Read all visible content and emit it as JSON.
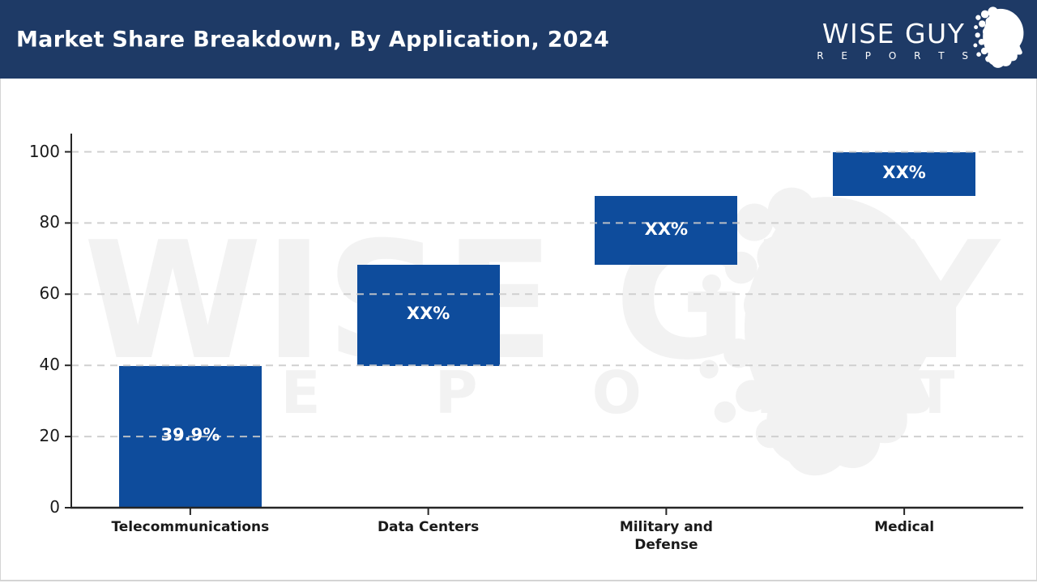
{
  "header": {
    "title": "Market Share Breakdown, By Application, 2024",
    "bg_color": "#1e3a66",
    "logo": {
      "line1": "WISE GUY",
      "line2": "R E P O R T S"
    }
  },
  "watermark": {
    "line1": "WISE GUY",
    "line2": "R E P O R T S"
  },
  "chart_data": {
    "type": "bar",
    "subtype": "waterfall",
    "title": "Market Share Breakdown, By Application, 2024",
    "xlabel": "",
    "ylabel": "",
    "ylim": [
      0,
      100
    ],
    "yticks": [
      0,
      20,
      40,
      60,
      80,
      100
    ],
    "grid": "dashed-horizontal-over-bars",
    "legend": "none",
    "bar_color": "#0e4c9c",
    "value_label_color": "#ffffff",
    "axis_color": "#262626",
    "grid_color": "#cbcbcb",
    "categories": [
      "Telecommunications",
      "Data Centers",
      "Military and\nDefense",
      "Medical"
    ],
    "segments": [
      {
        "category": "Telecommunications",
        "start": 0,
        "end": 39.9,
        "value": 39.9,
        "label": "39.9%"
      },
      {
        "category": "Data Centers",
        "start": 39.9,
        "end": 68.3,
        "value": 28.4,
        "label": "XX%"
      },
      {
        "category": "Military and Defense",
        "start": 68.3,
        "end": 87.5,
        "value": 19.2,
        "label": "XX%"
      },
      {
        "category": "Medical",
        "start": 87.5,
        "end": 100,
        "value": 12.5,
        "label": "XX%"
      }
    ]
  }
}
